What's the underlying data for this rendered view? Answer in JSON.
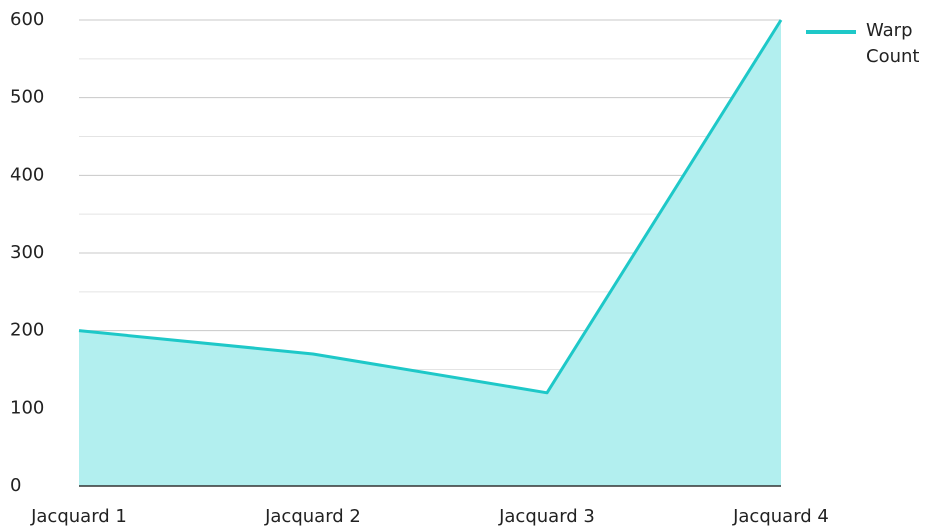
{
  "chart_data": {
    "type": "area",
    "categories": [
      "Jacquard 1",
      "Jacquard 2",
      "Jacquard 3",
      "Jacquard 4"
    ],
    "series": [
      {
        "name": "Warp Count",
        "color": "#1ec8c8",
        "fill": "#b2efef",
        "values": [
          200,
          170,
          120,
          600
        ]
      }
    ],
    "ylim": [
      0,
      600
    ],
    "yticks": [
      0,
      100,
      200,
      300,
      400,
      500,
      600
    ],
    "minor_yticks": [
      50,
      150,
      250,
      350,
      450,
      550
    ],
    "grid": true,
    "legend": "top-right"
  }
}
